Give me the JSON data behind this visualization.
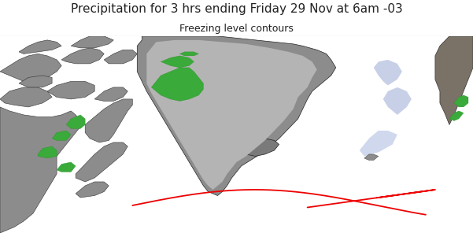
{
  "title": "Precipitation for 3 hrs ending Friday 29 Nov at 6am -03",
  "subtitle": "Freezing level contours",
  "title_fontsize": 11,
  "subtitle_fontsize": 9,
  "title_color": "#222222",
  "ocean_color": "#d8e4f0",
  "land_color_dark": "#8c8c8c",
  "land_color_light": "#b4b4b4",
  "green_color": "#3aaa3a",
  "red_color": "#ee0000",
  "figsize": [
    6.01,
    2.96
  ],
  "dpi": 100,
  "title_bg": "#ffffff",
  "lavender_color": "#c8d0e8"
}
